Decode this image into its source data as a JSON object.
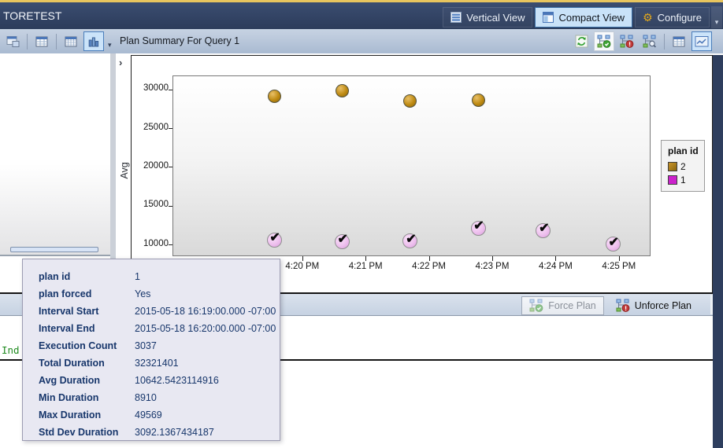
{
  "window": {
    "title": "TORETEST"
  },
  "header": {
    "buttons": [
      {
        "label": "Vertical View",
        "selected": false
      },
      {
        "label": "Compact View",
        "selected": true
      },
      {
        "label": "Configure",
        "selected": false
      }
    ]
  },
  "toolbar": {
    "panel_title": "Plan Summary For Query 1"
  },
  "plan_toolbar": {
    "force_plan": "Force Plan",
    "unforce_plan": "Unforce Plan",
    "force_plan_enabled": false
  },
  "code_fragment": "Ind",
  "tooltip": {
    "rows": [
      {
        "label": "plan id",
        "value": "1"
      },
      {
        "label": "plan forced",
        "value": "Yes"
      },
      {
        "label": "Interval Start",
        "value": "2015-05-18 16:19:00.000 -07:00"
      },
      {
        "label": "Interval End",
        "value": "2015-05-18 16:20:00.000 -07:00"
      },
      {
        "label": "Execution Count",
        "value": "3037"
      },
      {
        "label": "Total Duration",
        "value": "32321401"
      },
      {
        "label": "Avg Duration",
        "value": "10642.5423114916"
      },
      {
        "label": "Min Duration",
        "value": "8910"
      },
      {
        "label": "Max Duration",
        "value": "49569"
      },
      {
        "label": "Std Dev Duration",
        "value": "3092.1367434187"
      }
    ]
  },
  "chart_data": {
    "type": "scatter",
    "title": "Plan Summary For Query 1",
    "xlabel": "",
    "ylabel": "Avg",
    "grid": false,
    "y_axis": {
      "ticks": [
        30000,
        25000,
        20000,
        15000,
        10000
      ],
      "range": [
        8500,
        31800
      ]
    },
    "x_axis": {
      "ticks": [
        {
          "label": "4:20 PM",
          "minutes": 20
        },
        {
          "label": "4:21 PM",
          "minutes": 21
        },
        {
          "label": "4:22 PM",
          "minutes": 22
        },
        {
          "label": "4:23 PM",
          "minutes": 23
        },
        {
          "label": "4:24 PM",
          "minutes": 24
        },
        {
          "label": "4:25 PM",
          "minutes": 25
        }
      ],
      "range_minutes": [
        17.95,
        25.5
      ],
      "unit": "minutes after 4:00 PM"
    },
    "legend": {
      "title": "plan id",
      "position": "right",
      "entries": [
        {
          "label": "2",
          "color": "#B8860B"
        },
        {
          "label": "1",
          "color": "#CC22CC"
        }
      ]
    },
    "series": [
      {
        "name": "2",
        "plan_id": 2,
        "marker": "circle",
        "fill": "#BE8A12",
        "points": [
          {
            "minutes": 19.55,
            "value": 29200
          },
          {
            "minutes": 20.62,
            "value": 29850
          },
          {
            "minutes": 21.7,
            "value": 28600
          },
          {
            "minutes": 22.77,
            "value": 28650
          }
        ]
      },
      {
        "name": "1",
        "plan_id": 1,
        "marker": "circle-check",
        "forced": true,
        "fill": "#EEC0EE",
        "points": [
          {
            "minutes": 19.55,
            "value": 10642.54
          },
          {
            "minutes": 20.62,
            "value": 10450
          },
          {
            "minutes": 21.7,
            "value": 10520
          },
          {
            "minutes": 22.77,
            "value": 12150
          },
          {
            "minutes": 23.8,
            "value": 11870
          },
          {
            "minutes": 24.9,
            "value": 10100
          }
        ]
      }
    ]
  }
}
